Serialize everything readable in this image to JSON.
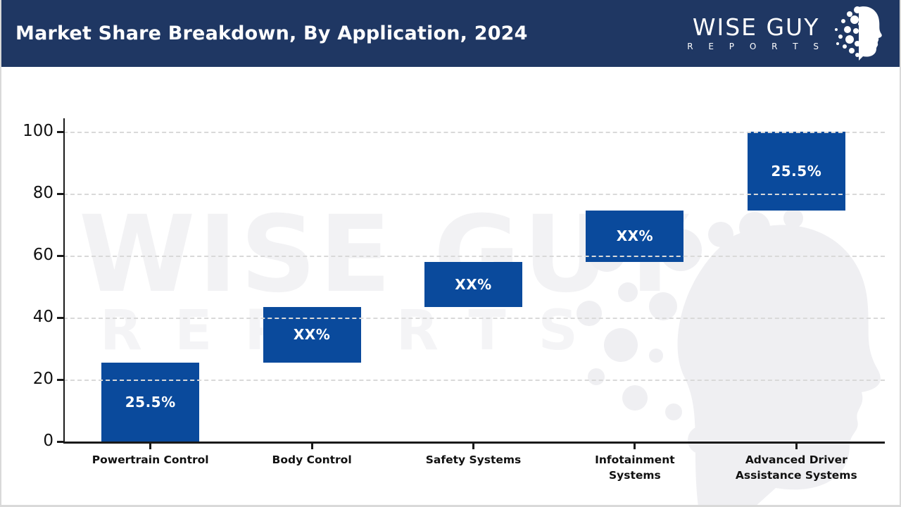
{
  "header": {
    "title": "Market Share Breakdown, By Application, 2024",
    "logo_line1": "WISE GUY",
    "logo_line2": "R E P O R T S"
  },
  "watermark": {
    "line1": "WISE GUY",
    "line2": "REPORTS"
  },
  "colors": {
    "header_bg": "#1f3763",
    "bar": "#0a4a9c",
    "grid": "#d9d9d9",
    "axis": "#1a1a1a",
    "bar_label": "#ffffff",
    "watermark": "#f2f2f4"
  },
  "chart_data": {
    "type": "bar",
    "subtype": "floating-waterfall",
    "title": "Market Share Breakdown, By Application, 2024",
    "categories": [
      "Powertrain Control",
      "Body Control",
      "Safety Systems",
      "Infotainment Systems",
      "Advanced Driver Assistance Systems"
    ],
    "category_lines": [
      [
        "Powertrain Control"
      ],
      [
        "Body Control"
      ],
      [
        "Safety Systems"
      ],
      [
        "Infotainment",
        "Systems"
      ],
      [
        "Advanced Driver",
        "Assistance Systems"
      ]
    ],
    "bars": [
      {
        "category": "Powertrain Control",
        "start": 0,
        "end": 25.5,
        "label": "25.5%"
      },
      {
        "category": "Body Control",
        "start": 25.5,
        "end": 43.5,
        "label": "XX%"
      },
      {
        "category": "Safety Systems",
        "start": 43.5,
        "end": 58.0,
        "label": "XX%"
      },
      {
        "category": "Infotainment Systems",
        "start": 58.0,
        "end": 74.5,
        "label": "XX%"
      },
      {
        "category": "Advanced Driver Assistance Systems",
        "start": 74.5,
        "end": 100.0,
        "label": "25.5%"
      }
    ],
    "ylim": [
      0,
      100
    ],
    "yticks": [
      0,
      20,
      40,
      60,
      80,
      100
    ],
    "xlabel": "",
    "ylabel": "",
    "grid": {
      "horizontal": true,
      "style": "dashed"
    },
    "legend": "none"
  }
}
